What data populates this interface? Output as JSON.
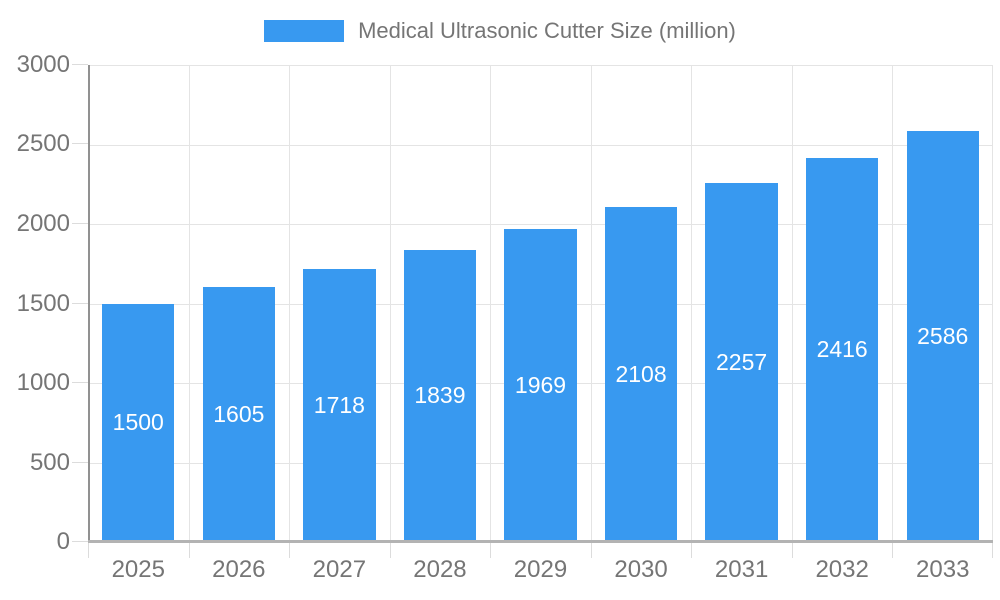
{
  "legend": {
    "label": "Medical Ultrasonic Cutter Size (million)",
    "swatch_color": "#3899f0"
  },
  "colors": {
    "bar": "#3899f0",
    "bar_label": "#ffffff",
    "axis_text": "#757575",
    "grid_line": "#e4e4e4",
    "tick_line": "#dcdcdc",
    "y_axis_line": "#919191",
    "baseline": "#b3b3b3",
    "background": "#ffffff"
  },
  "chart_data": {
    "type": "bar",
    "title": "Medical Ultrasonic Cutter Size (million)",
    "categories": [
      "2025",
      "2026",
      "2027",
      "2028",
      "2029",
      "2030",
      "2031",
      "2032",
      "2033"
    ],
    "series": [
      {
        "name": "Medical Ultrasonic Cutter Size (million)",
        "values": [
          1500,
          1605,
          1718,
          1839,
          1969,
          2108,
          2257,
          2416,
          2586
        ]
      }
    ],
    "xlabel": "",
    "ylabel": "",
    "ylim": [
      0,
      3000
    ],
    "yticks": [
      0,
      500,
      1000,
      1500,
      2000,
      2500,
      3000
    ],
    "grid": true,
    "legend_position": "top",
    "bar_labels_visible": true,
    "bar_label_position": "inside-center"
  }
}
